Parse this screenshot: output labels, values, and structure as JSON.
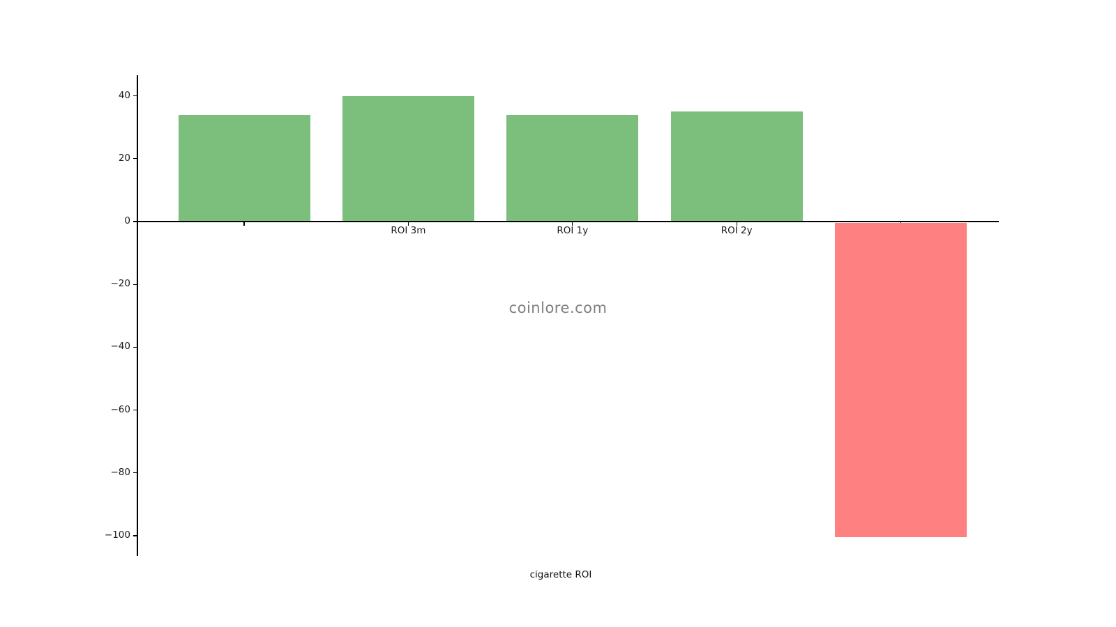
{
  "page": {
    "background": "#ffffff"
  },
  "watermark": {
    "text": "coinlore.com",
    "color": "#808080"
  },
  "chart_data": {
    "type": "bar",
    "title": "cigarette ROI",
    "xlabel": "",
    "ylabel": "",
    "categories": [
      "",
      "ROI 3m",
      "ROI 1y",
      "ROI 2y",
      ""
    ],
    "values": [
      34,
      40,
      34,
      35,
      -100
    ],
    "bar_colors": [
      "#7CBF7C",
      "#7CBF7C",
      "#7CBF7C",
      "#7CBF7C",
      "#FF8080"
    ],
    "positive_color": "#7CBF7C",
    "negative_color": "#FF8080",
    "y_ticks": [
      40,
      20,
      0,
      -20,
      -40,
      -60,
      -80,
      -100
    ],
    "ylim": [
      -106,
      46
    ],
    "grid": false,
    "legend": false,
    "axis_color": "#000000",
    "tick_label_color": "#1a1a1a",
    "watermark": "coinlore.com"
  }
}
